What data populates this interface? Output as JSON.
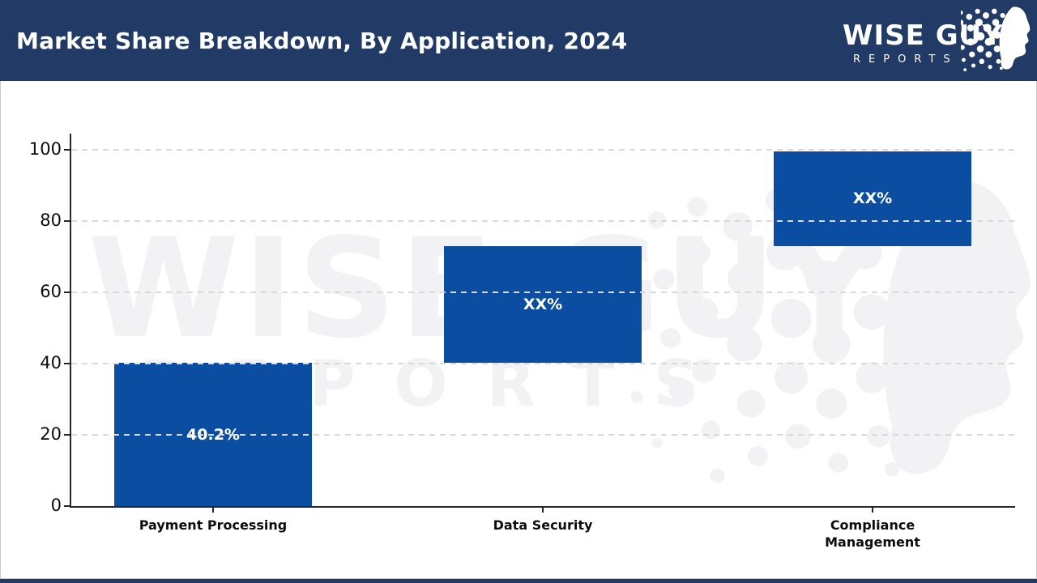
{
  "header": {
    "title": "Market Share Breakdown, By Application, 2024",
    "logo": {
      "wordmark": "WISE GUY",
      "sub": "REPORTS"
    }
  },
  "watermark": {
    "wordmark": "WISE GUY",
    "sub": "REPORTS"
  },
  "colors": {
    "header_bg": "#213a66",
    "bar": "#0b4da1",
    "bar_label": "#ffffff",
    "gridline": "#d9d9d9",
    "axis": "#262626",
    "text": "#0d0d0d",
    "watermark": "#f2f2f4"
  },
  "chart_data": {
    "type": "bar",
    "subtype": "floating-breakdown-columns",
    "title": "Market Share Breakdown, By Application, 2024",
    "categories": [
      "Payment Processing",
      "Data Security",
      "Compliance Management"
    ],
    "segments": [
      {
        "category": "Payment Processing",
        "start": 0,
        "end": 40.2,
        "label": "40.2%"
      },
      {
        "category": "Data Security",
        "start": 40.2,
        "end": 73.0,
        "label": "XX%"
      },
      {
        "category": "Compliance Management",
        "start": 73.0,
        "end": 99.5,
        "label": "XX%"
      }
    ],
    "ylim": [
      0,
      100
    ],
    "yticks": [
      0,
      20,
      40,
      60,
      80,
      100
    ],
    "xlabel": "",
    "ylabel": "",
    "grid": "horizontal-dashed",
    "grid_above_bars": true,
    "legend": "none"
  }
}
